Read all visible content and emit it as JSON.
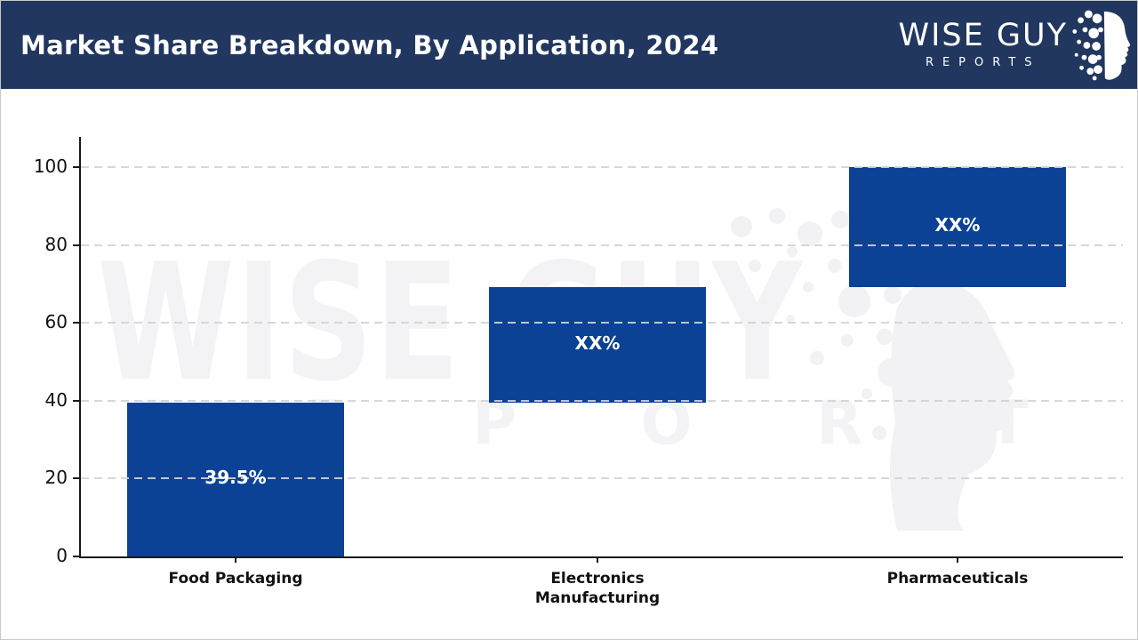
{
  "header": {
    "title": "Market Share Breakdown, By Application, 2024",
    "logo_primary": "WISE GUY",
    "logo_secondary": "REPORTS"
  },
  "watermark": {
    "primary": "WISE GUY",
    "secondary": "R E P O R T S"
  },
  "colors": {
    "header_bg": "#21375f",
    "bar": "#0b4295",
    "grid": "#d6d6d6",
    "axis": "#1a1a1a",
    "tick_label": "#111111",
    "bar_label": "#ffffff",
    "watermark": "#f3f3f5"
  },
  "chart_data": {
    "type": "bar",
    "subtype": "floating-waterfall",
    "title": "Market Share Breakdown, By Application, 2024",
    "categories": [
      "Food Packaging",
      "Electronics Manufacturing",
      "Pharmaceuticals"
    ],
    "category_lines": [
      [
        "Food Packaging"
      ],
      [
        "Electronics",
        "Manufacturing"
      ],
      [
        "Pharmaceuticals"
      ]
    ],
    "segments": [
      {
        "category": "Food Packaging",
        "start": 0,
        "end": 39.5,
        "label": "39.5%"
      },
      {
        "category": "Electronics Manufacturing",
        "start": 39.5,
        "end": 69.2,
        "label": "XX%"
      },
      {
        "category": "Pharmaceuticals",
        "start": 69.2,
        "end": 100,
        "label": "XX%"
      }
    ],
    "xlabel": "",
    "ylabel": "",
    "yticks": [
      0,
      20,
      40,
      60,
      80,
      100
    ],
    "ylim": [
      0,
      107
    ],
    "grid": true,
    "grid_style": "dashed",
    "grid_over_bars": true,
    "legend": false
  }
}
